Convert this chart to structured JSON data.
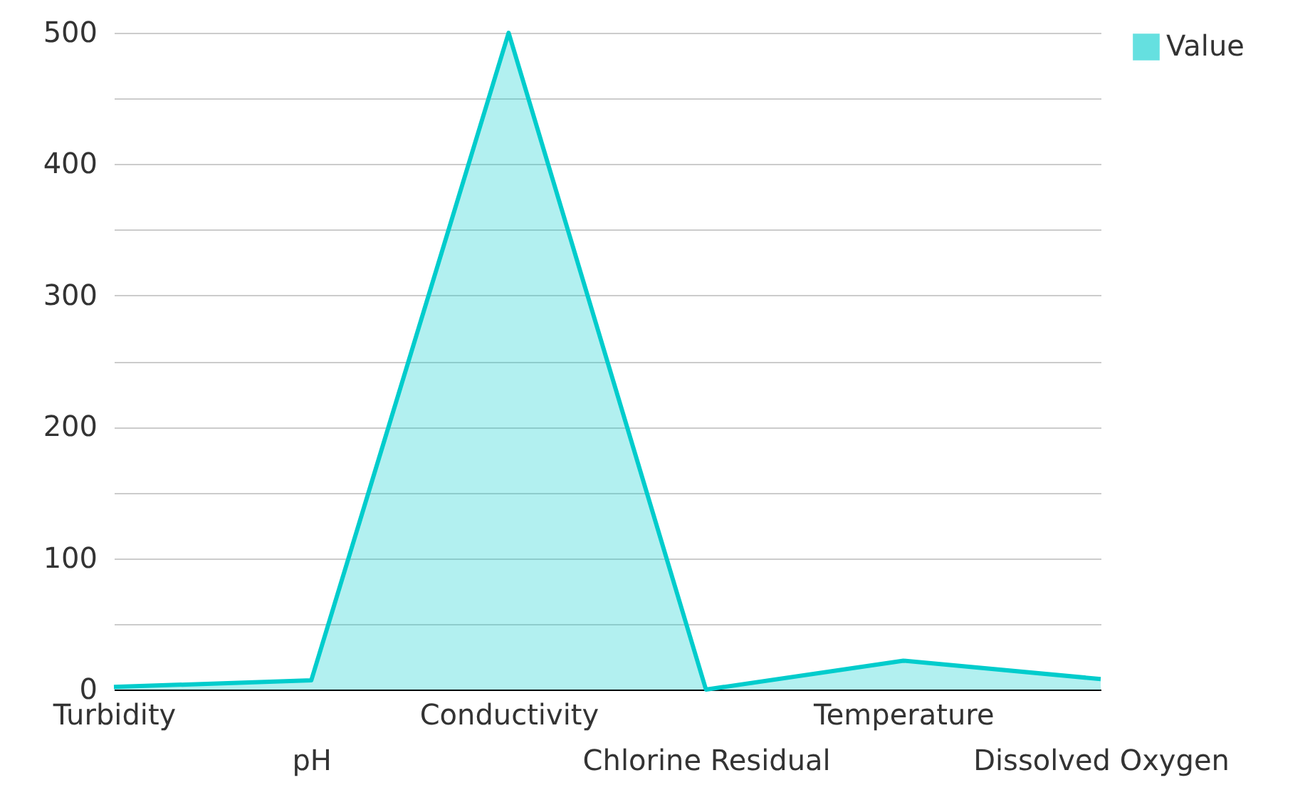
{
  "chart_data": {
    "type": "area",
    "categories": [
      "Turbidity",
      "pH",
      "Conductivity",
      "Chlorine Residual",
      "Temperature",
      "Dissolved Oxygen"
    ],
    "series": [
      {
        "name": "Value",
        "color": "#00cccc",
        "values": [
          2,
          7,
          500,
          0,
          22,
          8
        ]
      }
    ],
    "ylim": [
      0,
      500
    ],
    "yticks": [
      0,
      {
        "value": 50,
        "label": null
      },
      100,
      {
        "value": 150,
        "label": null
      },
      200,
      {
        "value": 250,
        "label": null
      },
      300,
      {
        "value": 350,
        "label": null
      },
      400,
      {
        "value": 450,
        "label": null
      },
      500
    ],
    "grid": true,
    "legend": "top right"
  }
}
